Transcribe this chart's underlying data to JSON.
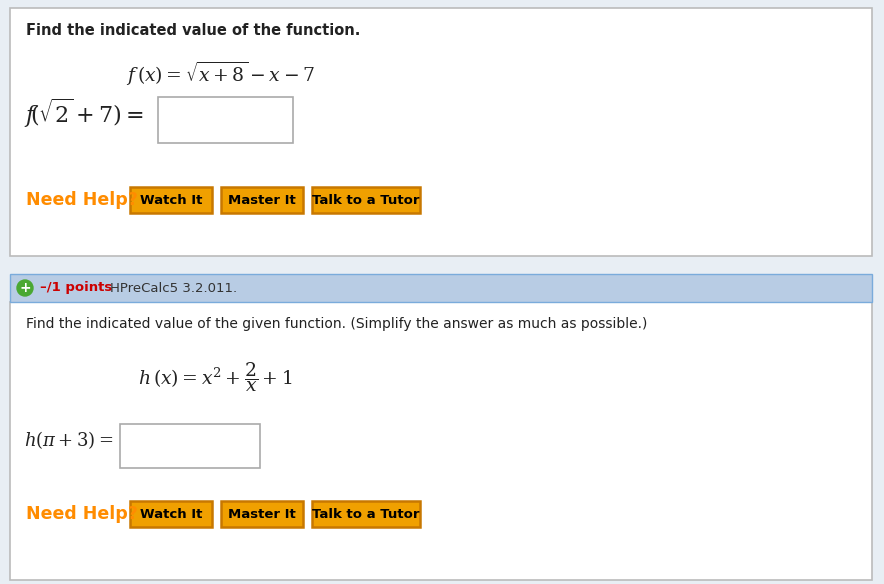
{
  "bg_color": "#e8eef4",
  "panel_bg": "#ffffff",
  "panel_border": "#bbbbbb",
  "header_bg": "#b8cce4",
  "header_border": "#7aabdb",
  "header_plus_color": "#4aa832",
  "header_points_color": "#cc0000",
  "header_ref_color": "#333333",
  "need_help_color": "#ff8c00",
  "button_bg": "#f0a000",
  "button_border": "#c87800",
  "button_text_color": "#000000",
  "input_box_color": "#aaaaaa",
  "section1_title": "Find the indicated value of the function.",
  "section2_header_text": "–/1 points",
  "section2_header_ref": "HPreCalc5 3.2.011.",
  "section2_title": "Find the indicated value of the given function. (Simplify the answer as much as possible.)",
  "button_labels": [
    "Watch It",
    "Master It",
    "Talk to a Tutor"
  ],
  "fig_w": 8.84,
  "fig_h": 5.84,
  "dpi": 100
}
